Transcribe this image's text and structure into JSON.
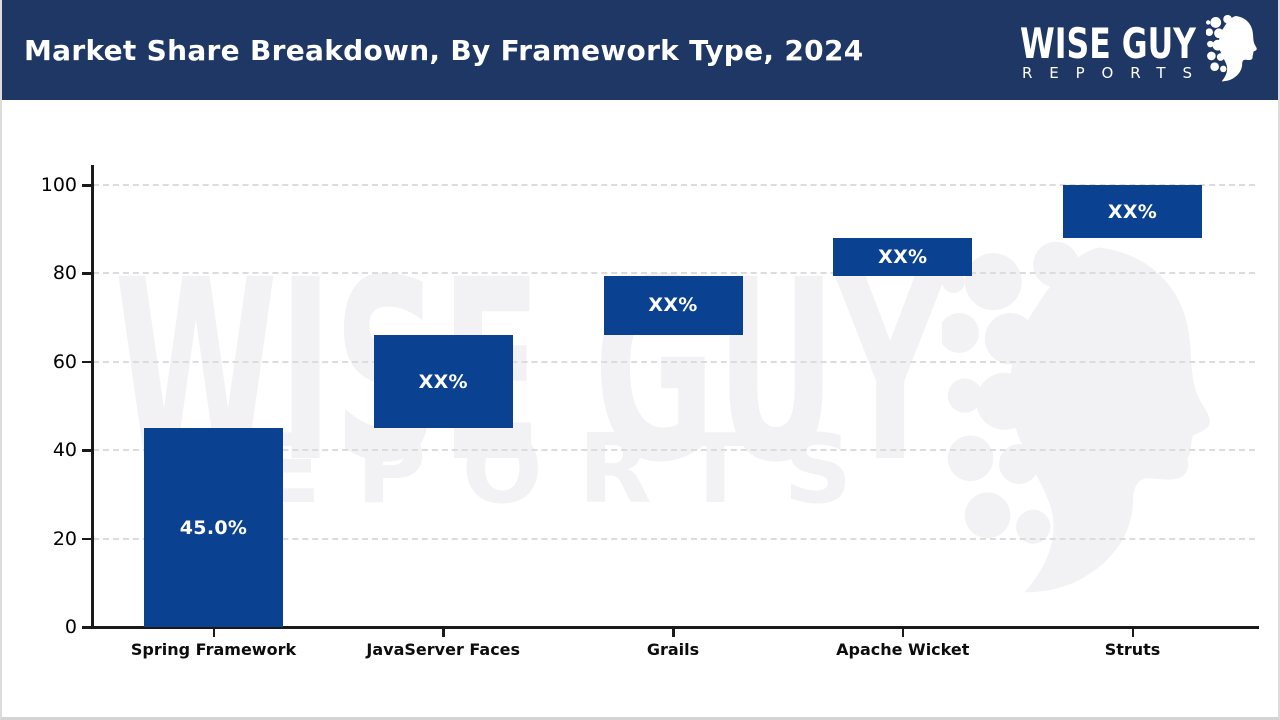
{
  "header": {
    "title": "Market Share Breakdown, By Framework Type, 2024",
    "logo": {
      "wordmark": "WISE GUY",
      "subtext": "REPORTS"
    }
  },
  "watermark": {
    "wordmark": "WISE GUY",
    "subtext": "REPORTS"
  },
  "colors": {
    "header_bg": "#1e3765",
    "title_text": "#ffffff",
    "bar": "#0a4191",
    "bar_label": "#ffffff",
    "axis": "#1a1a1a",
    "grid": "#dcdcdc",
    "watermark": "#f2f2f4"
  },
  "chart_data": {
    "type": "bar",
    "variant": "waterfall",
    "title": "Market Share Breakdown, By Framework Type, 2024",
    "categories": [
      "Spring Framework",
      "JavaServer Faces",
      "Grails",
      "Apache Wicket",
      "Struts"
    ],
    "bars": [
      {
        "category": "Spring Framework",
        "start": 0,
        "end": 45,
        "value_label": "45.0%"
      },
      {
        "category": "JavaServer Faces",
        "start": 45,
        "end": 66,
        "value_label": "XX%"
      },
      {
        "category": "Grails",
        "start": 66,
        "end": 79.5,
        "value_label": "XX%"
      },
      {
        "category": "Apache Wicket",
        "start": 79.5,
        "end": 88,
        "value_label": "XX%"
      },
      {
        "category": "Struts",
        "start": 88,
        "end": 100,
        "value_label": "XX%"
      }
    ],
    "xlabel": "",
    "ylabel": "",
    "ylim": [
      0,
      100
    ],
    "yticks": [
      0,
      20,
      40,
      60,
      80,
      100
    ],
    "grid": "horizontal-dashed",
    "legend": false
  }
}
